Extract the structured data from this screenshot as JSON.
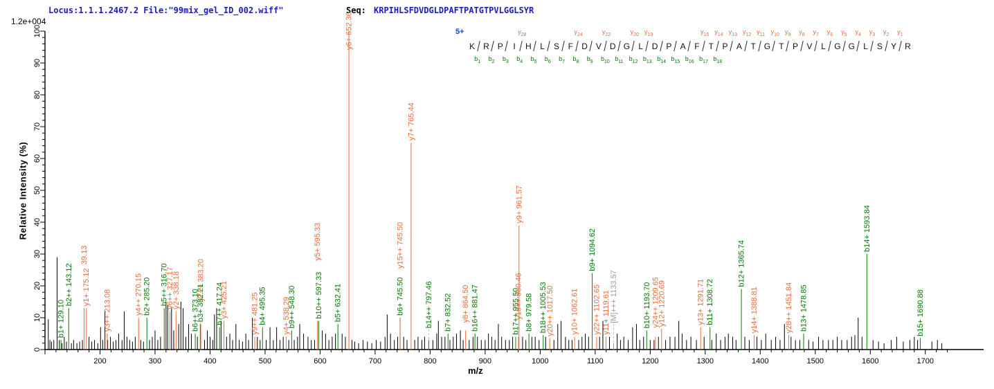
{
  "header": {
    "locus_text": "Locus:1.1.1.2467.2 File:\"99mix_gel_ID_002.wiff\"",
    "seq_label": "Seq:",
    "sequence": "KRPIHLSFDVDGLDPAFTPATGTPVLGGLSYR"
  },
  "scale_note": "1.2e+004",
  "colors": {
    "b_ion": "#007b00",
    "y_ion": "#ed6a3a",
    "neutral_M": "#9a9a9a",
    "background_peak": "#000000",
    "axis": "#000000",
    "header_blue": "#1b1bbe",
    "precursor_blue": "#0a46e8",
    "dash_leader": "#bbbbbb"
  },
  "sequence_annotation": {
    "charge_label": "5+",
    "residues": [
      "K",
      "R",
      "P",
      "I",
      "H",
      "L",
      "S",
      "F",
      "D",
      "V",
      "D",
      "G",
      "L",
      "D",
      "P",
      "A",
      "F",
      "T",
      "P",
      "A",
      "T",
      "G",
      "T",
      "P",
      "V",
      "L",
      "G",
      "G",
      "L",
      "S",
      "Y",
      "R"
    ],
    "y_ions": [
      {
        "k": 4,
        "n": 28
      },
      {
        "k": 8,
        "n": 24
      },
      {
        "k": 10,
        "n": 22
      },
      {
        "k": 12,
        "n": 20
      },
      {
        "k": 13,
        "n": 19
      },
      {
        "k": 17,
        "n": 15
      },
      {
        "k": 18,
        "n": 14
      },
      {
        "k": 19,
        "n": 13
      },
      {
        "k": 20,
        "n": 12
      },
      {
        "k": 21,
        "n": 11
      },
      {
        "k": 22,
        "n": 10
      },
      {
        "k": 23,
        "n": 9
      },
      {
        "k": 24,
        "n": 8
      },
      {
        "k": 25,
        "n": 7
      },
      {
        "k": 26,
        "n": 6
      },
      {
        "k": 27,
        "n": 5
      },
      {
        "k": 28,
        "n": 4
      },
      {
        "k": 29,
        "n": 3
      },
      {
        "k": 30,
        "n": 2
      },
      {
        "k": 31,
        "n": 1
      }
    ],
    "b_ions": [
      {
        "k": 1,
        "n": 1
      },
      {
        "k": 2,
        "n": 2
      },
      {
        "k": 3,
        "n": 3
      },
      {
        "k": 4,
        "n": 4
      },
      {
        "k": 5,
        "n": 5
      },
      {
        "k": 6,
        "n": 6
      },
      {
        "k": 7,
        "n": 7
      },
      {
        "k": 8,
        "n": 8
      },
      {
        "k": 9,
        "n": 9
      },
      {
        "k": 10,
        "n": 10
      },
      {
        "k": 11,
        "n": 11
      },
      {
        "k": 12,
        "n": 12
      },
      {
        "k": 13,
        "n": 13
      },
      {
        "k": 14,
        "n": 14
      },
      {
        "k": 15,
        "n": 15
      },
      {
        "k": 16,
        "n": 16
      },
      {
        "k": 17,
        "n": 17
      },
      {
        "k": 18,
        "n": 18
      }
    ]
  },
  "chart_data": {
    "type": "bar",
    "subtype": "mass-spectrum-stick-plot",
    "title": "",
    "xlabel": "m/z",
    "ylabel": "Relative Intensity (%)",
    "y_scale_note": "1.2e+004",
    "xlim": [
      100,
      1806
    ],
    "ylim": [
      0,
      100
    ],
    "x_major_tick_step": 100,
    "x_minor_tick_step": 20,
    "x_tick_labels": [
      200,
      300,
      400,
      500,
      600,
      700,
      800,
      900,
      1000,
      1100,
      1200,
      1300,
      1400,
      1500,
      1600,
      1700
    ],
    "y_major_tick_step": 10,
    "y_minor_tick_step": 2,
    "grid": false,
    "legend": false,
    "labeled_peaks": [
      {
        "mz": 129.1,
        "h": 3,
        "type": "b",
        "label": "b1+ 129.10"
      },
      {
        "mz": 143.12,
        "h": 13,
        "type": "b",
        "label": "b2++ 143.12"
      },
      {
        "mz": 171.0,
        "h": 13,
        "type": "y",
        "label": "39.13",
        "lift": 60
      },
      {
        "mz": 175.12,
        "h": 13,
        "type": "y",
        "label": "y1+ 175.12"
      },
      {
        "mz": 213.08,
        "h": 5,
        "type": "y",
        "label": "y3++ 213.08"
      },
      {
        "mz": 270.15,
        "h": 10,
        "type": "y",
        "label": "y4++ 270.15"
      },
      {
        "mz": 285.2,
        "h": 10,
        "type": "b",
        "label": "b2+ 285.20"
      },
      {
        "mz": 316.7,
        "h": 13,
        "type": "b",
        "label": "b5++ 316.70"
      },
      {
        "mz": 327.17,
        "h": 12,
        "type": "y",
        "label": "y6++ 327.17"
      },
      {
        "mz": 338.18,
        "h": 12,
        "type": "y",
        "label": "y2+ 338.18"
      },
      {
        "mz": 373.1,
        "h": 5,
        "type": "b",
        "label": "b6++ 373.10"
      },
      {
        "mz": 382.21,
        "h": 8,
        "type": "b",
        "label": "b3+ 382.21"
      },
      {
        "mz": 383.2,
        "h": 8,
        "type": "y",
        "label": "y7++ 383.20",
        "lift": 30,
        "dash": true
      },
      {
        "mz": 417.24,
        "h": 7,
        "type": "b",
        "label": "b7++ 417.24"
      },
      {
        "mz": 425.21,
        "h": 9,
        "type": "y",
        "label": "y3+ 425.21"
      },
      {
        "mz": 481.25,
        "h": 4,
        "type": "y",
        "label": "y9++ 481.25"
      },
      {
        "mz": 495.35,
        "h": 7,
        "type": "b",
        "label": "b4+ 495.35"
      },
      {
        "mz": 538.29,
        "h": 4,
        "type": "y",
        "label": "y4+ 538.29"
      },
      {
        "mz": 548.3,
        "h": 6,
        "type": "b",
        "label": "b9++ 548.30"
      },
      {
        "mz": 597.33,
        "h": 9,
        "type": "b",
        "label": "b10++ 597.33"
      },
      {
        "mz": 595.33,
        "h": 9,
        "type": "y",
        "label": "y5+ 595.33",
        "lift": 84
      },
      {
        "mz": 632.41,
        "h": 8,
        "type": "b",
        "label": "b5+ 632.41"
      },
      {
        "mz": 652.36,
        "h": 100,
        "type": "y",
        "label": "y6+ 652.36",
        "lift": -30
      },
      {
        "mz": 745.5,
        "h": 10,
        "type": "b",
        "label": "b6+ 745.50"
      },
      {
        "mz": 745.5,
        "h": 10,
        "type": "y",
        "label": "y15++ 745.50",
        "lift": 68
      },
      {
        "mz": 765.44,
        "h": 65,
        "type": "y",
        "label": "y7+ 765.44"
      },
      {
        "mz": 797.46,
        "h": 3,
        "type": "b",
        "label": "b14++ 797.46",
        "lift": 14,
        "dash": true
      },
      {
        "mz": 832.52,
        "h": 5,
        "type": "b",
        "label": "b7+ 832.52"
      },
      {
        "mz": 864.5,
        "h": 6,
        "type": "y",
        "label": "y8+ 864.50",
        "lift": 8
      },
      {
        "mz": 881.47,
        "h": 5,
        "type": "b",
        "label": "b16++ 881.47"
      },
      {
        "mz": 955.5,
        "h": 4,
        "type": "b",
        "label": "b17++ 955.50"
      },
      {
        "mz": 960.46,
        "h": 4,
        "type": "y",
        "label": "y19++ 960.46",
        "lift": 22
      },
      {
        "mz": 961.57,
        "h": 39,
        "type": "y",
        "label": "y9+ 961.57"
      },
      {
        "mz": 979.58,
        "h": 5,
        "type": "b",
        "label": "b8+ 979.58"
      },
      {
        "mz": 1005.53,
        "h": 4.5,
        "type": "b",
        "label": "b18++ 1005.53"
      },
      {
        "mz": 1017.5,
        "h": 3.5,
        "type": "y",
        "label": "y20++ 1017.50"
      },
      {
        "mz": 1062.61,
        "h": 4,
        "type": "y",
        "label": "y10+ 1062.61"
      },
      {
        "mz": 1094.62,
        "h": 24,
        "type": "b",
        "label": "b9+ 1094.62"
      },
      {
        "mz": 1102.65,
        "h": 4,
        "type": "y",
        "label": "y22++ 1102.65"
      },
      {
        "mz": 1119.61,
        "h": 4,
        "type": "y",
        "label": "y11+ 1119.61"
      },
      {
        "mz": 1133.57,
        "h": 2,
        "type": "M",
        "label": "[M]+++ 1133.57",
        "lift": 26,
        "dash": true
      },
      {
        "mz": 1193.7,
        "h": 6,
        "type": "b",
        "label": "b10+ 1193.70"
      },
      {
        "mz": 1209.65,
        "h": 4,
        "type": "y",
        "label": "y24++ 1209.65",
        "lift": 10
      },
      {
        "mz": 1220.69,
        "h": 6.5,
        "type": "y",
        "label": "y12+ 1220.69"
      },
      {
        "mz": 1291.71,
        "h": 7,
        "type": "y",
        "label": "y13+ 1291.71"
      },
      {
        "mz": 1308.72,
        "h": 7,
        "type": "b",
        "label": "b11+ 1308.72"
      },
      {
        "mz": 1365.74,
        "h": 19,
        "type": "b",
        "label": "b12+ 1365.74"
      },
      {
        "mz": 1388.81,
        "h": 4.5,
        "type": "y",
        "label": "y14+ 1388.81"
      },
      {
        "mz": 1451.84,
        "h": 4.5,
        "type": "y",
        "label": "y28++ 1451.84"
      },
      {
        "mz": 1478.85,
        "h": 5,
        "type": "b",
        "label": "b13+ 1478.85"
      },
      {
        "mz": 1593.84,
        "h": 30,
        "type": "b",
        "label": "b14+ 1593.84"
      },
      {
        "mz": 1690.88,
        "h": 3.5,
        "type": "b",
        "label": "b15+ 1690.88"
      }
    ],
    "background_peaks": [
      [
        106,
        9.5
      ],
      [
        109,
        3
      ],
      [
        112,
        2.5
      ],
      [
        116,
        3
      ],
      [
        122,
        29
      ],
      [
        126,
        3
      ],
      [
        131,
        2
      ],
      [
        135,
        4
      ],
      [
        139,
        2.5
      ],
      [
        148,
        2
      ],
      [
        152,
        3
      ],
      [
        158,
        2
      ],
      [
        163,
        2.5
      ],
      [
        168,
        3
      ],
      [
        180,
        4
      ],
      [
        185,
        2.5
      ],
      [
        190,
        3
      ],
      [
        196,
        2
      ],
      [
        201,
        7
      ],
      [
        205,
        3
      ],
      [
        209,
        12
      ],
      [
        214,
        3
      ],
      [
        219,
        4
      ],
      [
        224,
        2.5
      ],
      [
        229,
        3
      ],
      [
        234,
        5
      ],
      [
        240,
        3
      ],
      [
        244,
        12
      ],
      [
        249,
        4
      ],
      [
        254,
        3
      ],
      [
        259,
        2.5
      ],
      [
        264,
        4
      ],
      [
        274,
        3
      ],
      [
        279,
        2.5
      ],
      [
        290,
        3
      ],
      [
        295,
        4
      ],
      [
        300,
        6
      ],
      [
        305,
        3
      ],
      [
        310,
        4
      ],
      [
        320,
        15
      ],
      [
        323,
        14
      ],
      [
        330,
        13
      ],
      [
        334,
        6
      ],
      [
        343,
        8
      ],
      [
        347,
        15
      ],
      [
        351,
        13
      ],
      [
        356,
        4
      ],
      [
        361,
        8
      ],
      [
        366,
        5
      ],
      [
        377,
        4
      ],
      [
        390,
        3
      ],
      [
        395,
        6
      ],
      [
        400,
        4
      ],
      [
        405,
        3
      ],
      [
        408,
        11
      ],
      [
        412,
        13
      ],
      [
        420,
        9
      ],
      [
        430,
        4
      ],
      [
        436,
        5
      ],
      [
        441,
        3
      ],
      [
        447,
        8
      ],
      [
        453,
        3
      ],
      [
        459,
        2.5
      ],
      [
        465,
        5
      ],
      [
        470,
        3
      ],
      [
        477,
        10
      ],
      [
        486,
        4
      ],
      [
        491,
        3
      ],
      [
        502,
        3
      ],
      [
        509,
        7
      ],
      [
        515,
        3
      ],
      [
        521,
        7
      ],
      [
        527,
        3
      ],
      [
        533,
        4
      ],
      [
        543,
        3
      ],
      [
        553,
        3
      ],
      [
        559,
        4
      ],
      [
        563,
        8
      ],
      [
        570,
        5
      ],
      [
        578,
        4
      ],
      [
        584,
        3
      ],
      [
        590,
        3
      ],
      [
        604,
        6
      ],
      [
        610,
        5
      ],
      [
        616,
        3
      ],
      [
        622,
        4
      ],
      [
        628,
        5
      ],
      [
        640,
        5
      ],
      [
        646,
        4
      ],
      [
        658,
        3
      ],
      [
        663,
        2.5
      ],
      [
        670,
        2
      ],
      [
        678,
        3
      ],
      [
        686,
        2.5
      ],
      [
        694,
        2
      ],
      [
        702,
        3
      ],
      [
        710,
        2.5
      ],
      [
        718,
        4
      ],
      [
        722,
        11
      ],
      [
        728,
        5
      ],
      [
        735,
        3
      ],
      [
        741,
        4
      ],
      [
        752,
        4
      ],
      [
        758,
        3
      ],
      [
        772,
        3
      ],
      [
        778,
        4
      ],
      [
        785,
        3
      ],
      [
        790,
        4
      ],
      [
        805,
        3
      ],
      [
        812,
        5
      ],
      [
        815,
        9
      ],
      [
        821,
        4
      ],
      [
        827,
        4
      ],
      [
        836,
        3
      ],
      [
        842,
        4
      ],
      [
        848,
        5
      ],
      [
        855,
        6
      ],
      [
        860,
        3
      ],
      [
        871,
        3
      ],
      [
        878,
        4
      ],
      [
        886,
        4
      ],
      [
        893,
        3
      ],
      [
        900,
        3
      ],
      [
        906,
        5
      ],
      [
        912,
        4
      ],
      [
        918,
        3
      ],
      [
        924,
        8
      ],
      [
        930,
        4
      ],
      [
        937,
        3
      ],
      [
        944,
        3
      ],
      [
        950,
        4
      ],
      [
        968,
        4
      ],
      [
        974,
        3
      ],
      [
        985,
        4
      ],
      [
        991,
        4
      ],
      [
        998,
        3
      ],
      [
        1010,
        4
      ],
      [
        1025,
        3
      ],
      [
        1032,
        8
      ],
      [
        1038,
        9
      ],
      [
        1046,
        4
      ],
      [
        1052,
        3
      ],
      [
        1058,
        3
      ],
      [
        1070,
        3
      ],
      [
        1076,
        4
      ],
      [
        1082,
        5
      ],
      [
        1088,
        4
      ],
      [
        1108,
        4
      ],
      [
        1114,
        9
      ],
      [
        1126,
        4
      ],
      [
        1140,
        5
      ],
      [
        1146,
        3
      ],
      [
        1152,
        4
      ],
      [
        1160,
        3
      ],
      [
        1168,
        7
      ],
      [
        1175,
        8
      ],
      [
        1181,
        3
      ],
      [
        1188,
        4
      ],
      [
        1200,
        3
      ],
      [
        1207,
        3
      ],
      [
        1215,
        4
      ],
      [
        1228,
        3
      ],
      [
        1236,
        4
      ],
      [
        1245,
        4
      ],
      [
        1252,
        9
      ],
      [
        1258,
        5
      ],
      [
        1266,
        3
      ],
      [
        1274,
        4
      ],
      [
        1284,
        3
      ],
      [
        1298,
        4
      ],
      [
        1312,
        3
      ],
      [
        1320,
        5
      ],
      [
        1328,
        3
      ],
      [
        1336,
        4
      ],
      [
        1342,
        5
      ],
      [
        1350,
        4
      ],
      [
        1356,
        3
      ],
      [
        1372,
        4
      ],
      [
        1380,
        3
      ],
      [
        1394,
        4
      ],
      [
        1402,
        3
      ],
      [
        1410,
        5
      ],
      [
        1420,
        3
      ],
      [
        1428,
        4
      ],
      [
        1436,
        3
      ],
      [
        1444,
        8
      ],
      [
        1456,
        4
      ],
      [
        1464,
        3
      ],
      [
        1472,
        3
      ],
      [
        1488,
        3
      ],
      [
        1496,
        2.5
      ],
      [
        1506,
        4
      ],
      [
        1514,
        3
      ],
      [
        1524,
        3
      ],
      [
        1532,
        3
      ],
      [
        1540,
        4
      ],
      [
        1548,
        3
      ],
      [
        1558,
        3
      ],
      [
        1566,
        4
      ],
      [
        1572,
        4.5
      ],
      [
        1578,
        10
      ],
      [
        1585,
        4
      ],
      [
        1605,
        3
      ],
      [
        1615,
        2.5
      ],
      [
        1625,
        2
      ],
      [
        1638,
        3
      ],
      [
        1648,
        4
      ],
      [
        1660,
        2.5
      ],
      [
        1672,
        3
      ],
      [
        1680,
        4
      ],
      [
        1686,
        3
      ],
      [
        1712,
        2.5
      ],
      [
        1722,
        3
      ],
      [
        1730,
        2
      ]
    ]
  }
}
